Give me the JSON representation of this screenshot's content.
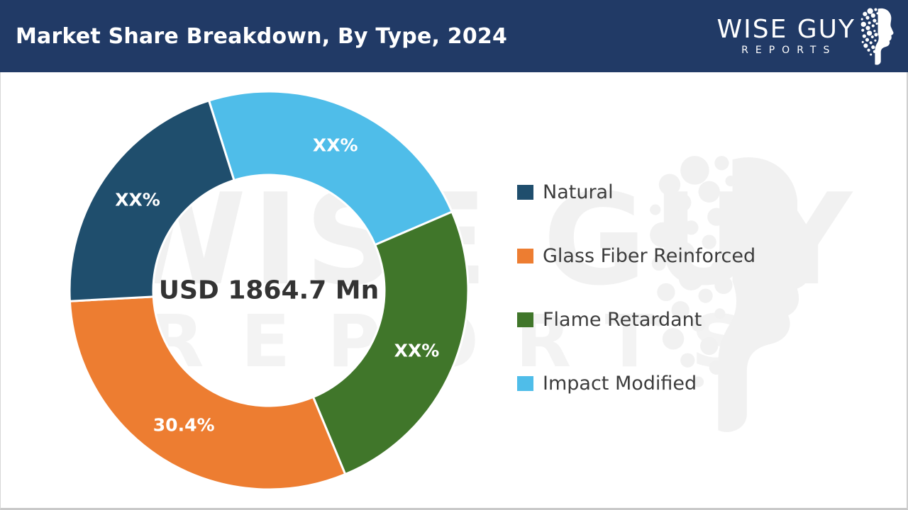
{
  "header": {
    "title": "Market Share Breakdown, By Type, 2024",
    "bg_color": "#213a66",
    "logo": {
      "line1": "WISE GUY",
      "line2": "REPORTS"
    }
  },
  "watermark": {
    "line1": "WISE GUY",
    "line2": "REPORTS",
    "color": "#f1f1f1"
  },
  "chart_data": {
    "type": "pie",
    "donut": true,
    "title": "Market Share Breakdown, By Type, 2024",
    "categories": [
      "Natural",
      "Glass Fiber Reinforced",
      "Flame Retardant",
      "Impact Modified"
    ],
    "values": [
      21.0,
      30.4,
      25.2,
      23.4
    ],
    "labels": [
      "XX%",
      "30.4%",
      "XX%",
      "XX%"
    ],
    "colors": [
      "#1f4e6d",
      "#ed7d31",
      "#40762a",
      "#4fbde9"
    ],
    "center_text": "USD 1864.7 Mn",
    "units": "percent of market share",
    "start_angle_deg": 342.5,
    "direction": "clockwise-reverse-order",
    "inner_radius_ratio": 0.58,
    "slice_border_color": "#ffffff",
    "label_color": "#ffffff",
    "legend_position": "right"
  }
}
